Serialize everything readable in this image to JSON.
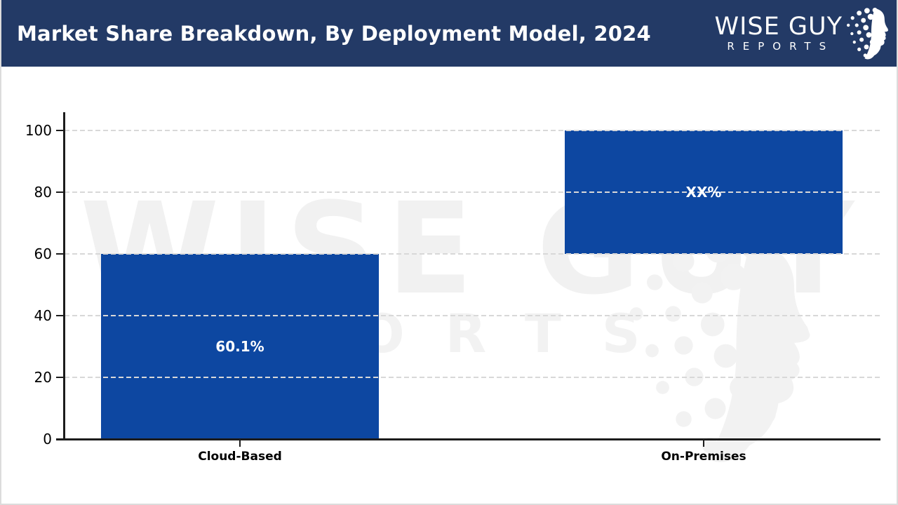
{
  "header": {
    "title": "Market Share Breakdown, By Deployment Model, 2024",
    "background_color": "#233a66",
    "logo": {
      "wordmark": "WISE GUY",
      "subtext": "REPORTS"
    }
  },
  "watermark": {
    "wordmark": "WISE GUY",
    "subtext": "REPORTS"
  },
  "chart_data": {
    "type": "bar",
    "title": "Market Share Breakdown, By Deployment Model, 2024",
    "categories": [
      "Cloud-Based",
      "On-Premises"
    ],
    "bars": [
      {
        "category": "Cloud-Based",
        "start": 0,
        "end": 60.1,
        "label": "60.1%"
      },
      {
        "category": "On-Premises",
        "start": 60.1,
        "end": 100,
        "label": "XX%"
      }
    ],
    "yticks": [
      0,
      20,
      40,
      60,
      80,
      100
    ],
    "ylim": [
      0,
      105
    ],
    "xlabel": "",
    "ylabel": "",
    "bar_color": "#0d47a1",
    "grid": {
      "axis": "y",
      "style": "dashed",
      "color": "#d8d8d8"
    },
    "legend": "none"
  }
}
